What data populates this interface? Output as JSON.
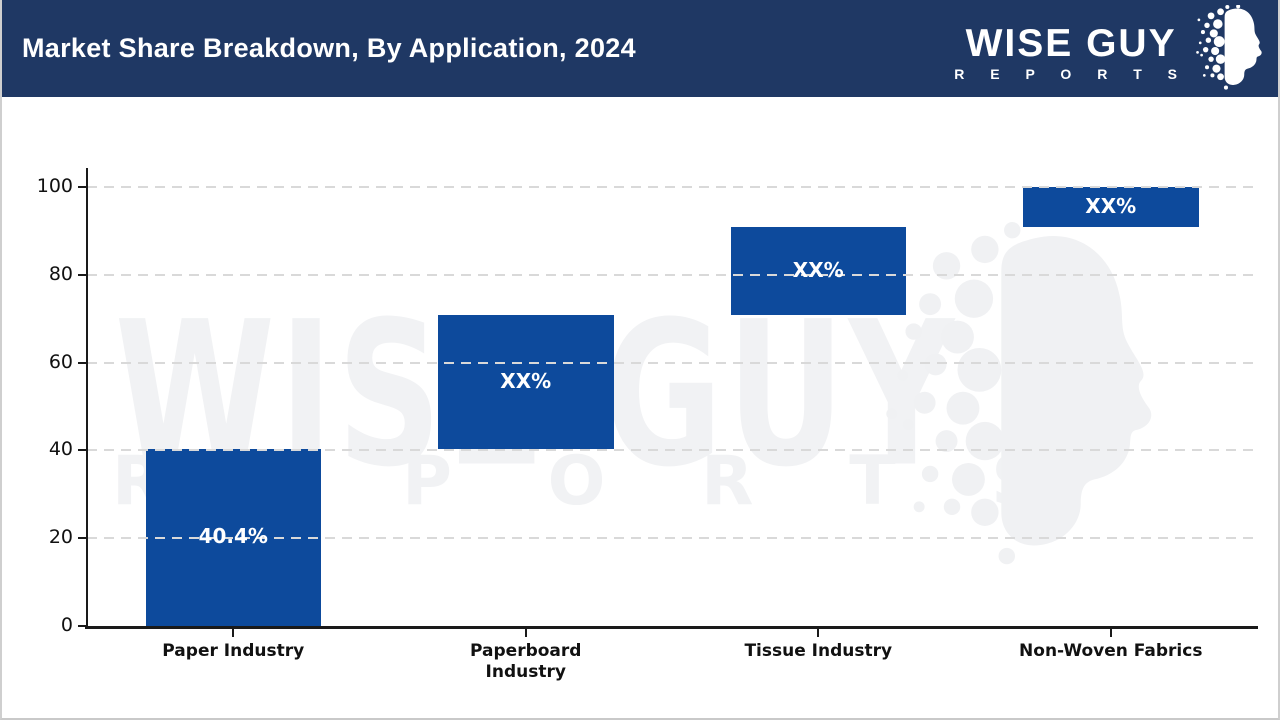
{
  "header": {
    "title": "Market Share Breakdown, By Application, 2024",
    "background": "#1f3864",
    "logo": {
      "line1": "WISE GUY",
      "line2": "R E P O R T S"
    }
  },
  "watermark": {
    "line1": "WISE GUY",
    "line2": "R E P O R T S"
  },
  "chart_data": {
    "type": "bar",
    "subtype": "waterfall",
    "title": "Market Share Breakdown, By Application, 2024",
    "categories": [
      {
        "label": "Paper Industry",
        "lines": [
          "Paper Industry"
        ]
      },
      {
        "label": "Paperboard Industry",
        "lines": [
          "Paperboard",
          "Industry"
        ]
      },
      {
        "label": "Tissue Industry",
        "lines": [
          "Tissue Industry"
        ]
      },
      {
        "label": "Non-Woven Fabrics",
        "lines": [
          "Non-Woven Fabrics"
        ]
      }
    ],
    "segments": [
      {
        "category": "Paper Industry",
        "start": 0,
        "end": 40.4,
        "label": "40.4%"
      },
      {
        "category": "Paperboard Industry",
        "start": 40.4,
        "end": 70.8,
        "label": "XX%"
      },
      {
        "category": "Tissue Industry",
        "start": 70.8,
        "end": 91.0,
        "label": "XX%"
      },
      {
        "category": "Non-Woven Fabrics",
        "start": 91.0,
        "end": 100.0,
        "label": "XX%"
      }
    ],
    "yticks": [
      0,
      20,
      40,
      60,
      80,
      100
    ],
    "ylim": [
      0,
      100
    ],
    "xlabel": "",
    "ylabel": "",
    "grid": "dashed-horizontal",
    "legend": "none",
    "bar_color": "#0d4a9c",
    "bar_label_color": "#ffffff",
    "gridline_color": "#d9d9d9",
    "axis_color": "#1a1a1a"
  }
}
